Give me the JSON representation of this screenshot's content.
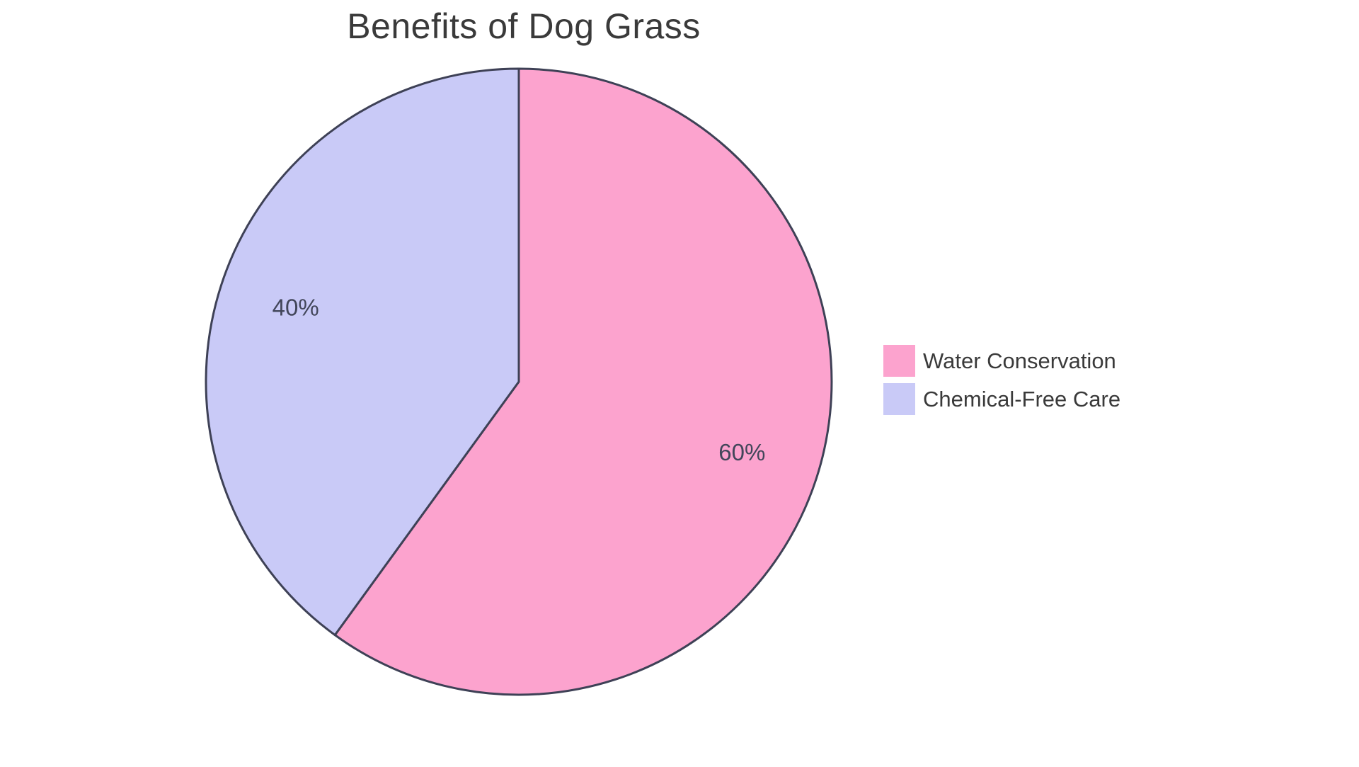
{
  "page": {
    "background_color": "#FFFFFF"
  },
  "chart_data": {
    "type": "pie",
    "title": "Benefits of Dog Grass",
    "title_color": "#3A3A3A",
    "slices": [
      {
        "label": "Water Conservation",
        "value": 60,
        "pct_label": "60%",
        "color": "#FCA3CE"
      },
      {
        "label": "Chemical-Free Care",
        "value": 40,
        "pct_label": "40%",
        "color": "#C9CAF7"
      }
    ],
    "start_angle_deg": 0,
    "direction": "clockwise",
    "outline_color": "#3E4156",
    "outline_width": 3,
    "pct_label_color": "#42465A",
    "legend_position": "right",
    "grid": false
  }
}
